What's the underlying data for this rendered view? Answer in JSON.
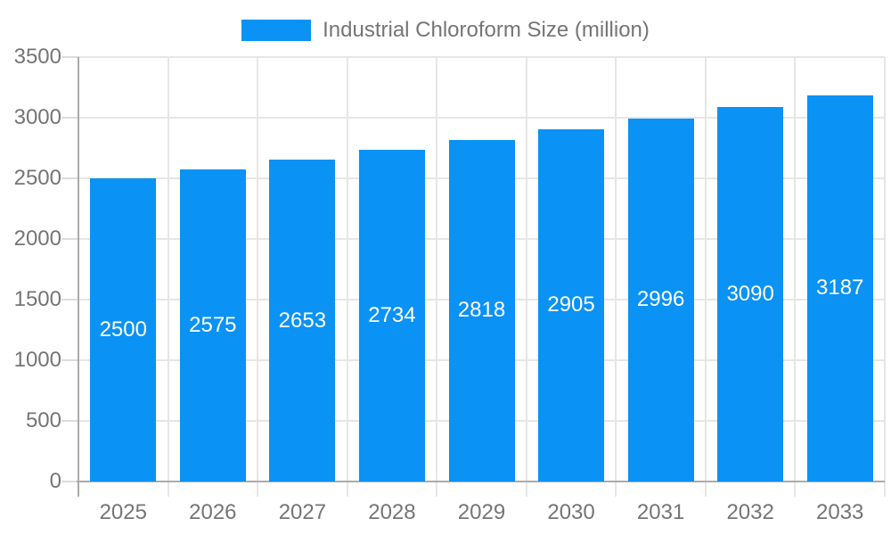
{
  "legend": {
    "label": "Industrial Chloroform Size (million)"
  },
  "chart_data": {
    "type": "bar",
    "title": "",
    "xlabel": "",
    "ylabel": "",
    "categories": [
      "2025",
      "2026",
      "2027",
      "2028",
      "2029",
      "2030",
      "2031",
      "2032",
      "2033"
    ],
    "series": [
      {
        "name": "Industrial Chloroform Size (million)",
        "values": [
          2500,
          2575,
          2653,
          2734,
          2818,
          2905,
          2996,
          3090,
          3187
        ]
      }
    ],
    "bar_labels": [
      "2500",
      "2575",
      "2653",
      "2734",
      "2818",
      "2905",
      "2996",
      "3090",
      "3187"
    ],
    "ylim": [
      0,
      3500
    ],
    "ytick_step": 500,
    "yticks": [
      0,
      500,
      1000,
      1500,
      2000,
      2500,
      3000,
      3500
    ],
    "grid": true,
    "legend_position": "top-center",
    "colors": {
      "bar": "#0A92F5",
      "bar_label": "#FFFFFF",
      "axis_text": "#757575",
      "gridline": "#E6E6E6",
      "tick": "#DCDCDC",
      "axis_line": "#ABABAB",
      "background": "#FFFFFF"
    }
  }
}
